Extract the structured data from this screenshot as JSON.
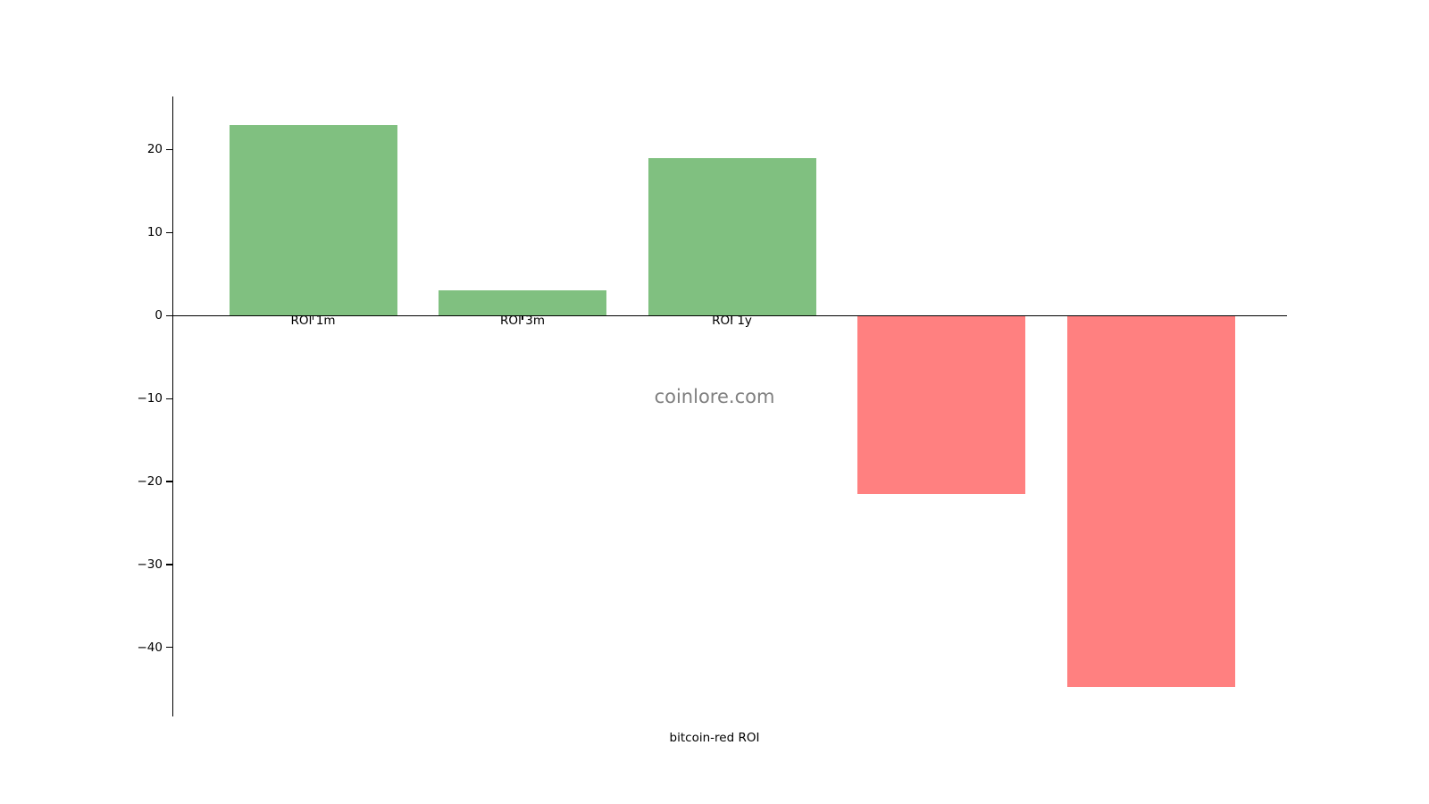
{
  "chart_data": {
    "type": "bar",
    "categories": [
      "ROI 1m",
      "ROI 3m",
      "ROI 1y",
      "",
      ""
    ],
    "values": [
      23,
      3,
      19,
      -21.5,
      -44.7
    ],
    "title": "",
    "xlabel": "bitcoin-red ROI",
    "ylabel": "",
    "ylim": [
      -48.3,
      26.4
    ],
    "yticks": [
      20,
      10,
      0,
      -10,
      -20,
      -30,
      -40
    ],
    "ytick_labels": [
      "20",
      "10",
      "0",
      "−10",
      "−20",
      "−30",
      "−40"
    ],
    "bar_colors": {
      "positive": "#80c080",
      "negative": "#ff8080"
    },
    "grid": false,
    "legend": null,
    "watermark": "coinlore.com"
  },
  "page": {
    "background": "#ffffff",
    "axis_color": "#000000",
    "text_color": "#000000",
    "watermark_color": "#808080"
  }
}
